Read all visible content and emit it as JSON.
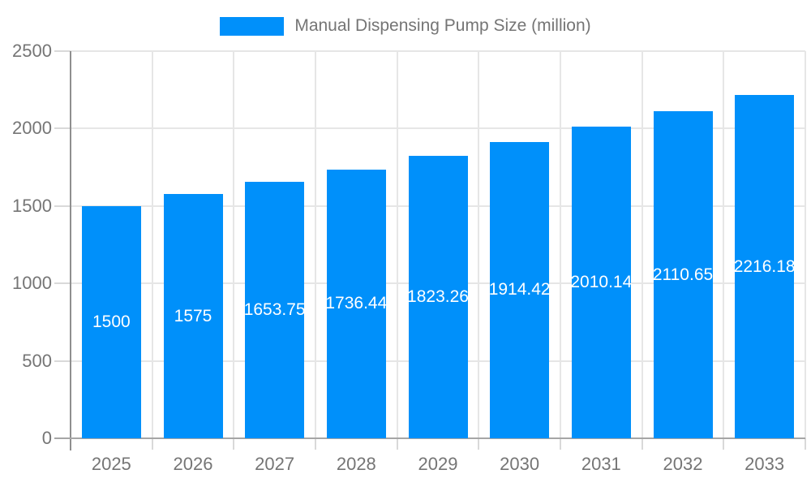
{
  "legend": {
    "label": "Manual Dispensing Pump Size (million)"
  },
  "chart_data": {
    "type": "bar",
    "title": "Manual Dispensing Pump Size (million)",
    "series_name": "Manual Dispensing Pump Size (million)",
    "categories": [
      "2025",
      "2026",
      "2027",
      "2028",
      "2029",
      "2030",
      "2031",
      "2032",
      "2033"
    ],
    "values": [
      1500,
      1575,
      1653.75,
      1736.44,
      1823.26,
      1914.42,
      2010.14,
      2110.65,
      2216.18
    ],
    "value_labels": [
      "1500",
      "1575",
      "1653.75",
      "1736.44",
      "1823.26",
      "1914.42",
      "2010.14",
      "2110.65",
      "2216.18"
    ],
    "xlabel": "",
    "ylabel": "",
    "ylim": [
      0,
      2500
    ],
    "ytick_step": 500,
    "ytick_labels": [
      "0",
      "500",
      "1000",
      "1500",
      "2000",
      "2500"
    ],
    "grid": true,
    "legend_position": "top",
    "colors": {
      "bar": "#0090FA",
      "bar_value_text": "#ffffff",
      "axis_tick_text": "#757575",
      "legend_text": "#757575",
      "gridline": "#e6e6e6",
      "tick_mark": "#d9d9d9",
      "y_axis_line": "#8f8f8f",
      "x_axis_line": "#a6a6a6"
    }
  }
}
